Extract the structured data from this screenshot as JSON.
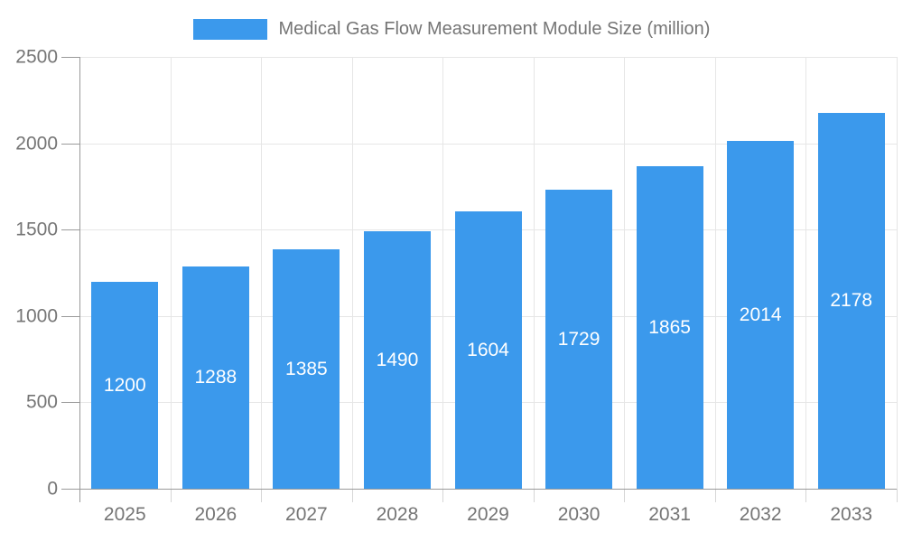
{
  "chart_data": {
    "type": "bar",
    "title": "Medical Gas Flow Measurement Module Size (million)",
    "legend": "Medical Gas Flow Measurement Module Size (million)",
    "legend_position": "top",
    "categories": [
      "2025",
      "2026",
      "2027",
      "2028",
      "2029",
      "2030",
      "2031",
      "2032",
      "2033"
    ],
    "values": [
      1200,
      1288,
      1385,
      1490,
      1604,
      1729,
      1865,
      2014,
      2178
    ],
    "xlabel": "",
    "ylabel": "",
    "ylim": [
      0,
      2500
    ],
    "yticks": [
      0,
      500,
      1000,
      1500,
      2000,
      2500
    ],
    "grid": true,
    "bar_color": "#3B99EC",
    "value_label_color": "#ffffff",
    "axis_label_color": "#757575",
    "grid_color": "#e6e6e6",
    "axis_color": "#9a9a9a"
  }
}
